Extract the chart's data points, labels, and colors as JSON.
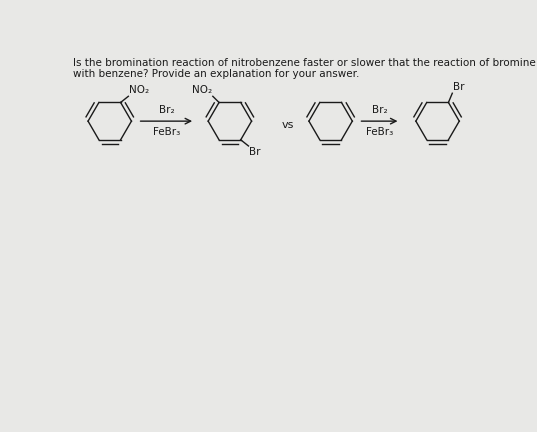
{
  "bg_color": "#e8e8e6",
  "title_line1": "Is the bromination reaction of nitrobenzene faster or slower that the reaction of bromine",
  "title_line2": "with benzene? Provide an explanation for your answer.",
  "title_fontsize": 7.5,
  "text_color": "#1a1a1a",
  "ring_color": "#1a1a1a",
  "ring_lw": 1.0,
  "reaction1": {
    "reactant_no2": "NO₂",
    "arrow_top": "Br₂",
    "arrow_bottom": "FeBr₃",
    "product_no2": "NO₂",
    "product_br": "Br"
  },
  "reaction2": {
    "arrow_top": "Br₂",
    "arrow_bottom": "FeBr₃",
    "product_br": "Br"
  },
  "vs_text": "vs"
}
